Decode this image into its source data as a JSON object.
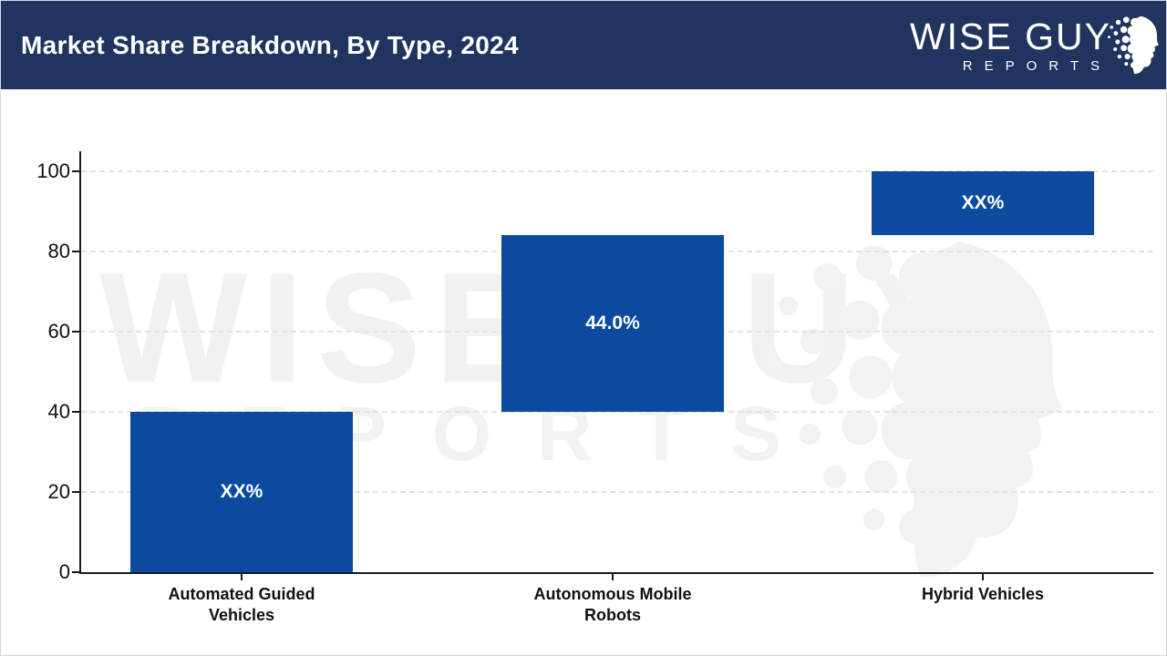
{
  "page": {
    "background": "#ffffff",
    "border_color": "#d8d8d8"
  },
  "header": {
    "title": "Market Share Breakdown, By Type, 2024",
    "bg_color": "#20345f",
    "text_color": "#ffffff",
    "logo": {
      "line1": "WISE GUY",
      "line2": "REPORTS",
      "head_icon": "dotted-head-profile"
    }
  },
  "watermark": {
    "line1": "WISE GUY",
    "line2": "REPORTS",
    "head_icon": "dotted-head-profile"
  },
  "chart_data": {
    "type": "bar",
    "subtype": "floating-segment-waterfall",
    "title": "Market Share Breakdown, By Type, 2024",
    "categories": [
      "Automated Guided Vehicles",
      "Autonomous Mobile Robots",
      "Hybrid Vehicles"
    ],
    "segments": [
      {
        "category": "Automated Guided Vehicles",
        "start": 0,
        "end": 40,
        "label": "XX%"
      },
      {
        "category": "Autonomous Mobile Robots",
        "start": 40,
        "end": 84,
        "label": "44.0%"
      },
      {
        "category": "Hybrid Vehicles",
        "start": 84,
        "end": 100,
        "label": "XX%"
      }
    ],
    "yticks": [
      0,
      20,
      40,
      60,
      80,
      100
    ],
    "ylim": [
      0,
      105
    ],
    "xlabel": "",
    "ylabel": "",
    "grid": "horizontal-dashed",
    "legend": "none",
    "bar_color": "#0b4a9f",
    "bar_label_color": "#ffffff",
    "axis_color": "#1a1a1a",
    "grid_color": "#e2e2e2"
  }
}
